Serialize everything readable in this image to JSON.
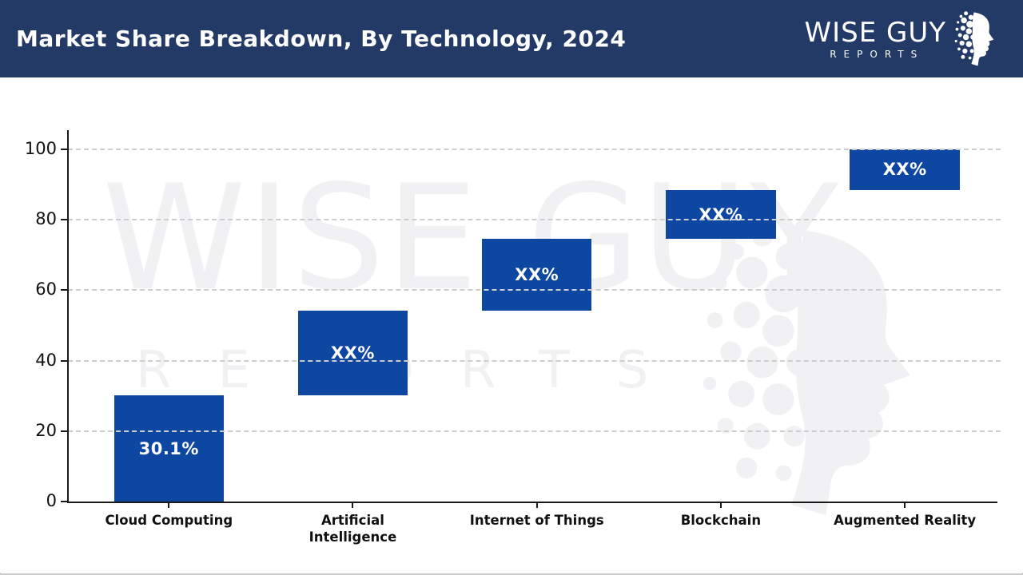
{
  "header": {
    "title": "Market Share Breakdown, By Technology, 2024",
    "logo": {
      "line1": "WISE GUY",
      "line2": "REPORTS"
    }
  },
  "watermark": {
    "line1": "WISE GUY",
    "line2": "REPORTS"
  },
  "chart_data": {
    "type": "bar",
    "subtype": "waterfall",
    "title": "Market Share Breakdown, By Technology, 2024",
    "categories": [
      "Cloud Computing",
      "Artificial Intelligence",
      "Internet of Things",
      "Blockchain",
      "Augmented Reality"
    ],
    "segments": [
      {
        "category": "Cloud Computing",
        "start": 0,
        "end": 30.1,
        "label": "30.1%"
      },
      {
        "category": "Artificial Intelligence",
        "start": 30.1,
        "end": 54.3,
        "label": "XX%"
      },
      {
        "category": "Internet of Things",
        "start": 54.3,
        "end": 74.5,
        "label": "XX%"
      },
      {
        "category": "Blockchain",
        "start": 74.5,
        "end": 88.5,
        "label": "XX%"
      },
      {
        "category": "Augmented Reality",
        "start": 88.5,
        "end": 100,
        "label": "XX%"
      }
    ],
    "xlabel": "",
    "ylabel": "",
    "ylim": [
      0,
      100
    ],
    "yticks": [
      0,
      20,
      40,
      60,
      80,
      100
    ],
    "grid": "horizontal-dashed",
    "legend": null,
    "bar_color": "#0d47a1",
    "bar_label_color": "#ffffff"
  },
  "colors": {
    "header_bg": "#243a66",
    "bar": "#0d47a1",
    "grid": "#cdcdcd",
    "axis": "#1a1a1a",
    "watermark": "#f1f1f4"
  }
}
